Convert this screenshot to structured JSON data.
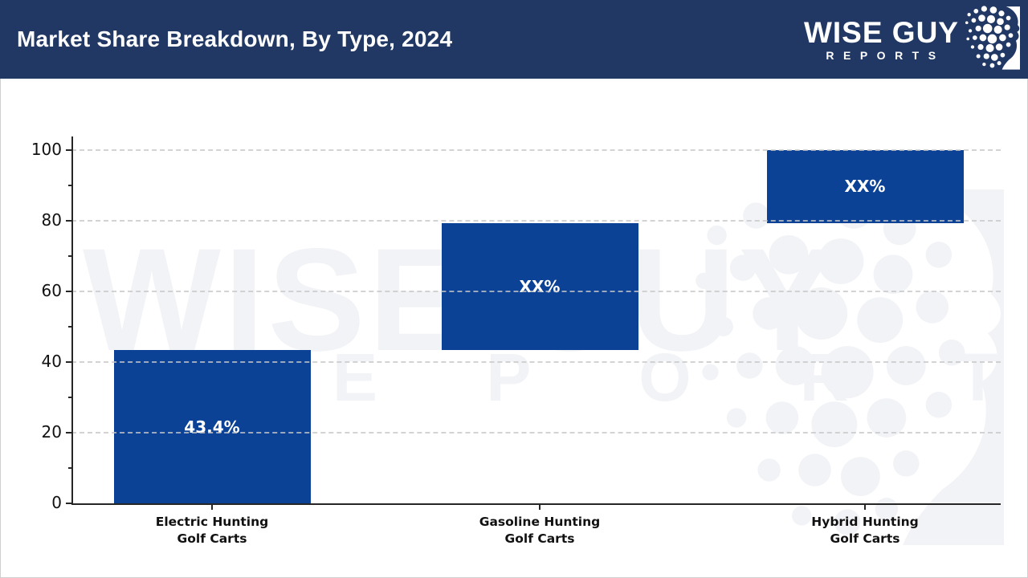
{
  "header": {
    "title": "Market Share Breakdown, By Type, 2024",
    "bg_color": "#213864",
    "title_color": "#ffffff",
    "logo": {
      "line1": "WISE GUY",
      "line2": "REPORTS"
    }
  },
  "watermark": {
    "line1": "WISE GUY",
    "line2": "REPORTS"
  },
  "chart_data": {
    "type": "bar",
    "subtype": "waterfall-percentage-breakdown",
    "title": "Market Share Breakdown, By Type, 2024",
    "categories": [
      "Electric Hunting\nGolf Carts",
      "Gasoline Hunting\nGolf Carts",
      "Hybrid Hunting\nGolf Carts"
    ],
    "segments": [
      {
        "from": 0,
        "to": 43.4,
        "label": "43.4%"
      },
      {
        "from": 43.4,
        "to": 79.4,
        "label": "XX%"
      },
      {
        "from": 79.4,
        "to": 100,
        "label": "XX%"
      }
    ],
    "xlabel": "",
    "ylabel": "",
    "ylim": [
      0,
      100
    ],
    "yticks": [
      0,
      20,
      40,
      60,
      80,
      100
    ],
    "minor_yticks": [
      10,
      30,
      50,
      70,
      90
    ],
    "grid": {
      "axis": "y",
      "style": "dashed",
      "on": true
    },
    "legend": null,
    "bar_color": "#0b4295",
    "bar_label_color": "#ffffff",
    "axis_color": "#262626",
    "tick_label_color": "#111111"
  }
}
